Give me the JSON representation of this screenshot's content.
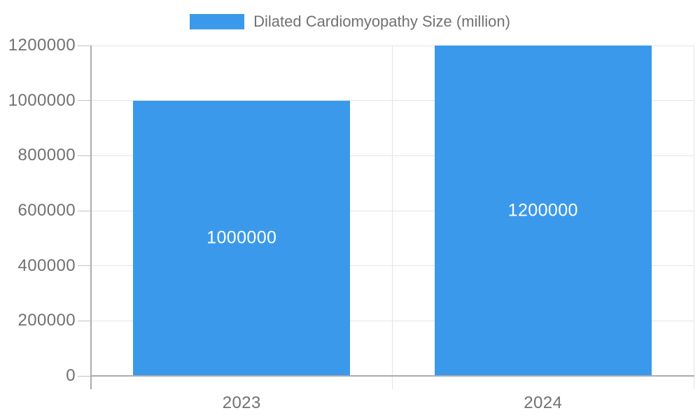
{
  "legend": {
    "label": "Dilated Cardiomyopathy Size (million)"
  },
  "colors": {
    "bar": "#3B99EC",
    "grid": "#E4E4E4",
    "axis": "#ABABAB",
    "tick": "#C2C2C2",
    "text": "#717171",
    "bar_label": "#FFFFFF",
    "background": "#FFFFFF"
  },
  "chart_data": {
    "type": "bar",
    "title": "",
    "categories": [
      "2023",
      "2024"
    ],
    "series": [
      {
        "name": "Dilated Cardiomyopathy Size (million)",
        "values": [
          1000000,
          1200000
        ]
      }
    ],
    "data_labels": [
      "1000000",
      "1200000"
    ],
    "xlabel": "",
    "ylabel": "",
    "y_ticks": [
      "0",
      "200000",
      "400000",
      "600000",
      "800000",
      "1000000",
      "1200000"
    ],
    "y_tick_values": [
      0,
      200000,
      400000,
      600000,
      800000,
      1000000,
      1200000
    ],
    "ylim": [
      0,
      1200000
    ],
    "grid": true,
    "legend_position": "top"
  }
}
